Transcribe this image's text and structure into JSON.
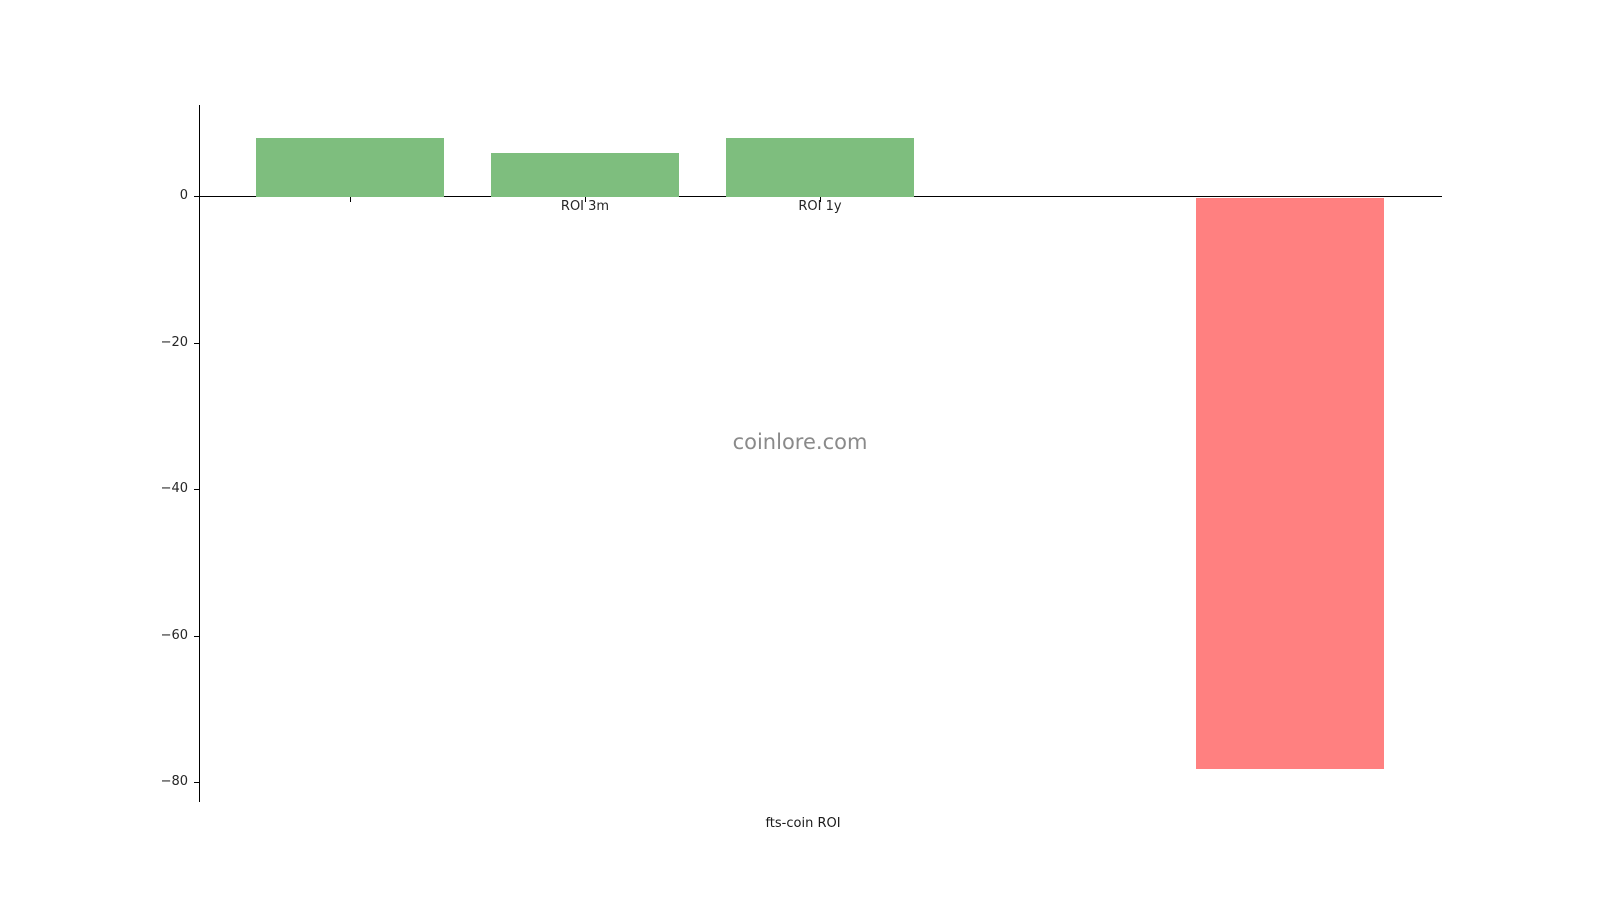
{
  "page": {
    "background": "#ffffff"
  },
  "chart_data": {
    "type": "bar",
    "title": "fts-coin ROI",
    "watermark": "coinlore.com",
    "categories": [
      "",
      "ROI 3m",
      "ROI 1y",
      "",
      ""
    ],
    "values": [
      8,
      6,
      8,
      0,
      -78
    ],
    "bar_colors": [
      "#7ebe7e",
      "#7ebe7e",
      "#7ebe7e",
      "#7ebe7e",
      "#ff8080"
    ],
    "x_tick_marks": [
      true,
      true,
      true,
      false,
      false
    ],
    "yticks": [
      {
        "value": 0,
        "label": "0"
      },
      {
        "value": -20,
        "label": "−20"
      },
      {
        "value": -40,
        "label": "−40"
      },
      {
        "value": -60,
        "label": "−60"
      },
      {
        "value": -80,
        "label": "−80"
      }
    ],
    "ylim": [
      -82.5,
      12.5
    ],
    "grid": false,
    "legend_position": "none",
    "colors": {
      "positive": "#7ebe7e",
      "negative": "#ff8080",
      "axis": "#000000",
      "tick_text": "#262626",
      "watermark": "#8a8a8a",
      "title_text": "#1a1a1a"
    }
  }
}
